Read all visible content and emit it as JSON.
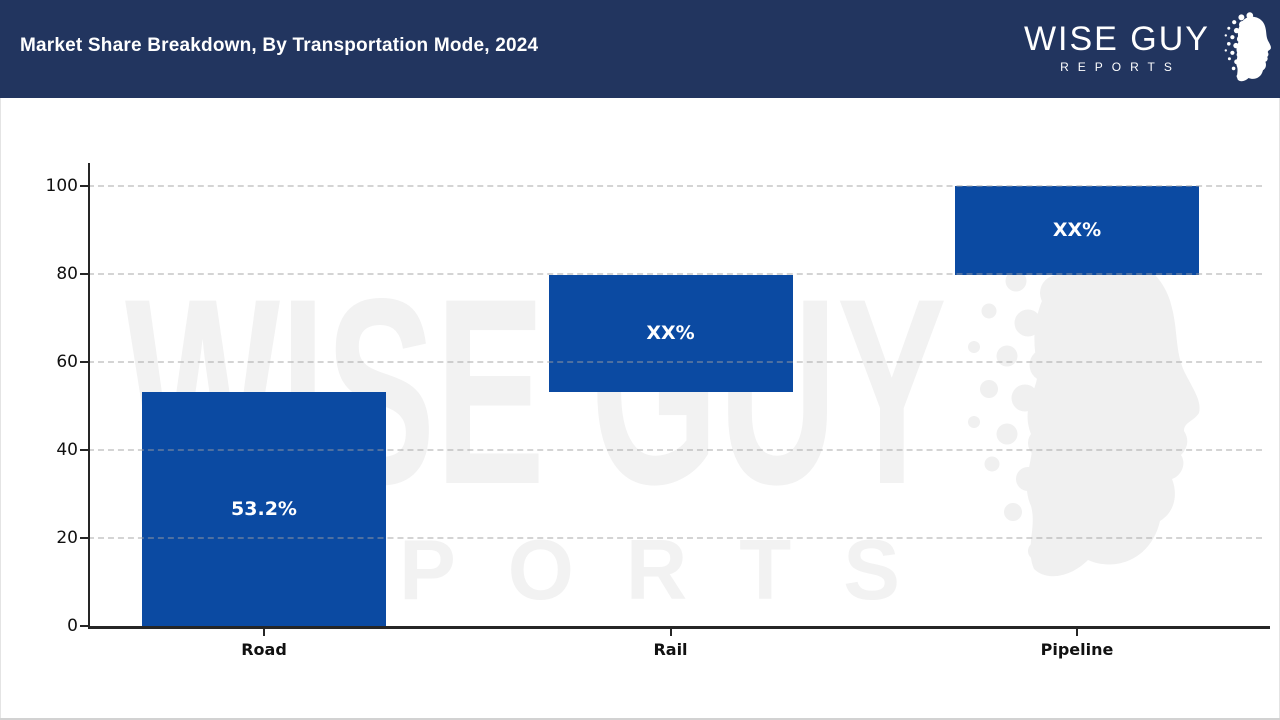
{
  "header": {
    "title": "Market Share Breakdown, By Transportation Mode, 2024",
    "logo": {
      "line1": "WISE GUY",
      "line2": "REPORTS"
    }
  },
  "watermark": {
    "line1": "WISE GUY",
    "line2": "REPORTS"
  },
  "colors": {
    "header_bg": "#22355f",
    "bar": "#0b4aa2",
    "axis": "#262626",
    "bar_label": "#ffffff",
    "watermark": "#f2f2f2"
  },
  "chart_data": {
    "type": "bar",
    "subtype": "floating-segment (waterfall-style market share)",
    "title": "Market Share Breakdown, By Transportation Mode, 2024",
    "categories": [
      "Road",
      "Rail",
      "Pipeline"
    ],
    "bars": [
      {
        "category": "Road",
        "value_label": "53.2%",
        "start": 0,
        "end": 53.2
      },
      {
        "category": "Rail",
        "value_label": "XX%",
        "start": 53.2,
        "end": 79.8
      },
      {
        "category": "Pipeline",
        "value_label": "XX%",
        "start": 79.8,
        "end": 100
      }
    ],
    "xlabel": "",
    "ylabel": "",
    "yticks": [
      0,
      20,
      40,
      60,
      80,
      100
    ],
    "ylim": [
      0,
      105
    ],
    "grid": "horizontal dashed",
    "legend": "none",
    "bar_color": "#0b4aa2",
    "value_label_color": "#ffffff"
  }
}
